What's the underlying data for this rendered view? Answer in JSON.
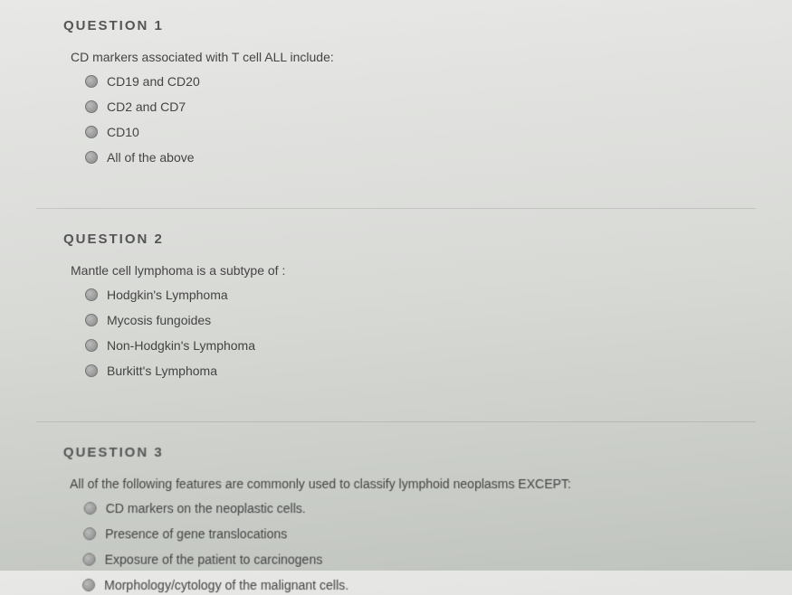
{
  "questions": [
    {
      "title": "QUESTION 1",
      "prompt": "CD markers associated with T cell ALL include:",
      "options": [
        "CD19 and CD20",
        "CD2 and CD7",
        "CD10",
        "All of the above"
      ]
    },
    {
      "title": "QUESTION 2",
      "prompt": "Mantle cell lymphoma is a subtype of :",
      "options": [
        "Hodgkin's Lymphoma",
        "Mycosis fungoides",
        "Non-Hodgkin's Lymphoma",
        "Burkitt's Lymphoma"
      ]
    },
    {
      "title": "QUESTION 3",
      "prompt": "All of the following features are commonly used to classify lymphoid neoplasms EXCEPT:",
      "options": [
        "CD markers on the neoplastic cells.",
        "Presence of gene translocations",
        "Exposure of the patient to carcinogens",
        "Morphology/cytology of the malignant cells."
      ]
    }
  ],
  "colors": {
    "background_top": "#e8e8e6",
    "background_bottom": "#c0c4be",
    "text": "#4a4a4a",
    "radio_fill": "#888888",
    "divider": "#bcbcba"
  }
}
